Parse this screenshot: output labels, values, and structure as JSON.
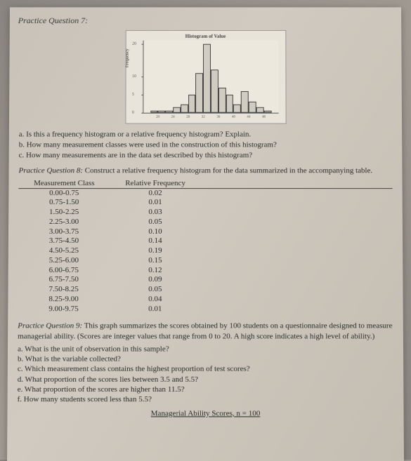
{
  "q7": {
    "title": "Practice Question 7:",
    "chart": {
      "title": "Histogram of Value",
      "ylabel": "Frequency",
      "yticks": [
        0,
        5,
        10,
        20
      ],
      "xticks": [
        "20",
        "24",
        "28",
        "32",
        "36",
        "40",
        "44",
        "48"
      ],
      "bar_heights_pct": [
        3,
        3,
        3,
        8,
        12,
        25,
        55,
        95,
        60,
        35,
        25,
        12,
        30,
        15,
        8,
        3
      ],
      "bar_fill": "#d0ccc2",
      "bar_border": "#444444",
      "bg": "#ece8de"
    },
    "subs": {
      "a": "a.  Is this a frequency histogram or a relative frequency histogram? Explain.",
      "b": "b.  How many measurement classes were used in the construction of this histogram?",
      "c": "c.  How many measurements are in the data set described by this histogram?"
    }
  },
  "q8": {
    "lead_it": "Practice Question 8:",
    "lead": " Construct a relative frequency histogram for the data summarized in the accompanying table.",
    "headers": {
      "c1": "Measurement Class",
      "c2": "Relative Frequency"
    },
    "rows": [
      {
        "c1": "0.00-0.75",
        "c2": "0.02"
      },
      {
        "c1": "0.75-1.50",
        "c2": "0.01"
      },
      {
        "c1": "1.50-2.25",
        "c2": "0.03"
      },
      {
        "c1": "2.25-3.00",
        "c2": "0.05"
      },
      {
        "c1": "3.00-3.75",
        "c2": "0.10"
      },
      {
        "c1": "3.75-4.50",
        "c2": "0.14"
      },
      {
        "c1": "4.50-5.25",
        "c2": "0.19"
      },
      {
        "c1": "5.25-6.00",
        "c2": "0.15"
      },
      {
        "c1": "6.00-6.75",
        "c2": "0.12"
      },
      {
        "c1": "6.75-7.50",
        "c2": "0.09"
      },
      {
        "c1": "7.50-8.25",
        "c2": "0.05"
      },
      {
        "c1": "8.25-9.00",
        "c2": "0.04"
      },
      {
        "c1": "9.00-9.75",
        "c2": "0.01"
      }
    ]
  },
  "q9": {
    "lead_it": "Practice Question 9:",
    "lead": " This graph summarizes the scores obtained by 100 students on a questionnaire designed to measure managerial ability. (Scores are integer values that range from 0 to 20. A high score indicates a high level of ability.)",
    "subs": {
      "a": "a. What is the unit of observation in this sample?",
      "b": "b. What is the variable collected?",
      "c": "c. Which measurement class contains the highest proportion of test scores?",
      "d": "d. What proportion of the scores lies between 3.5 and 5.5?",
      "e": "e. What proportion of the scores are higher than 11.5?",
      "f": "f. How many students scored less than 5.5?"
    },
    "footer": "Managerial Ability Scores, n = 100"
  }
}
